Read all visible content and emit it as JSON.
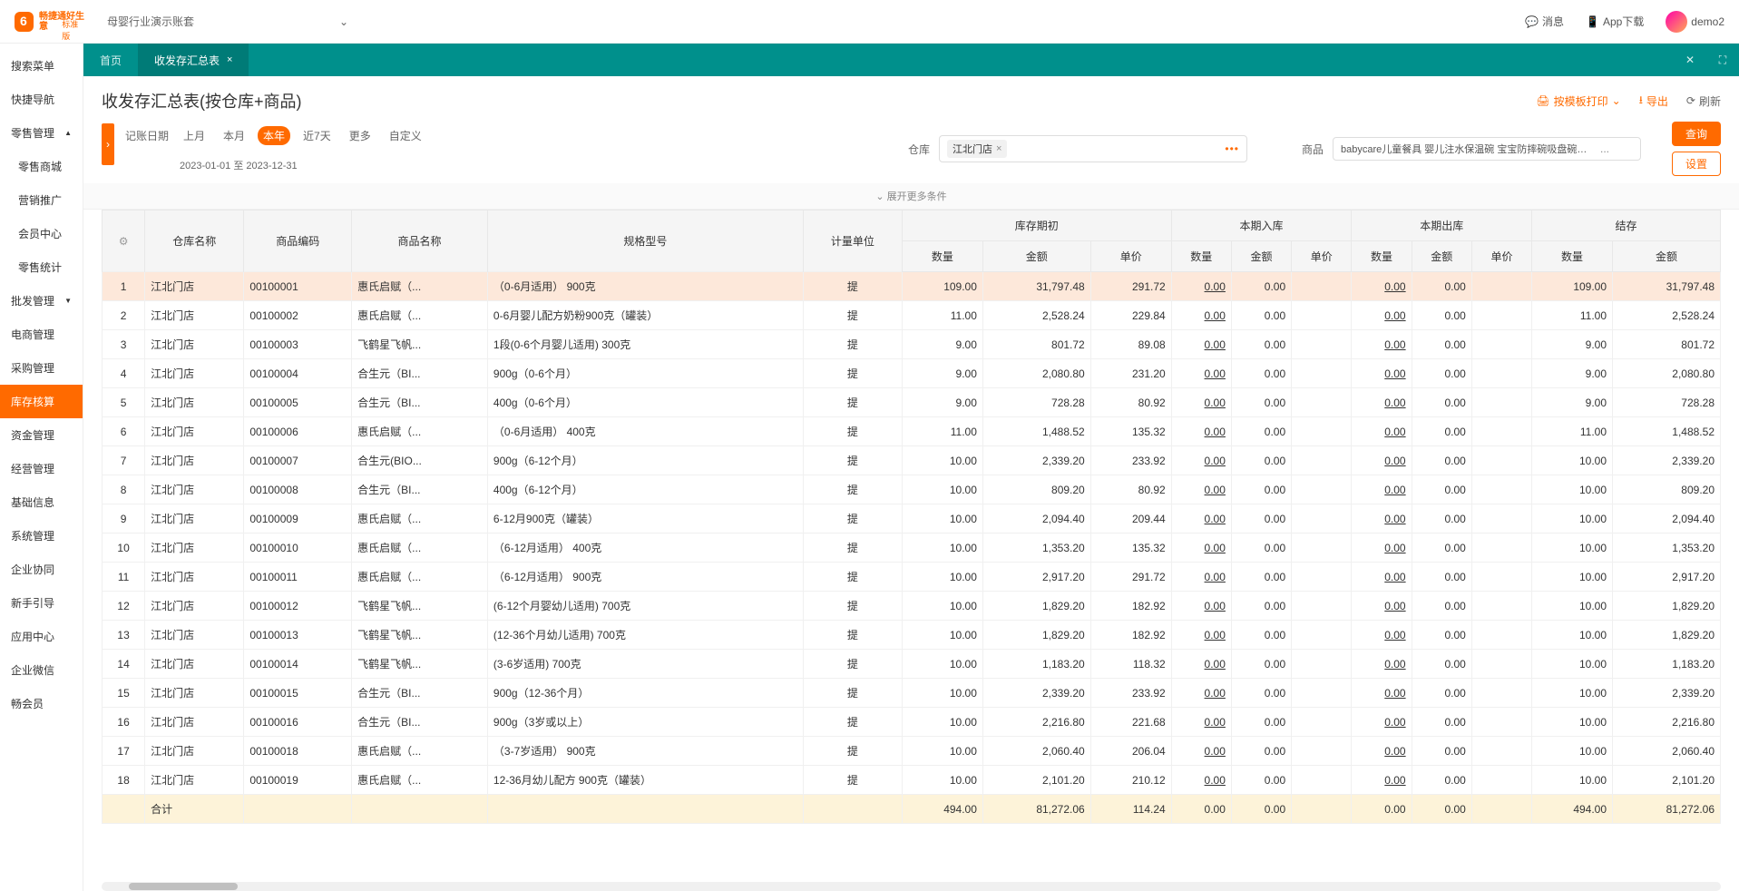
{
  "header": {
    "brand": "畅捷通好生意",
    "edition": "标准版",
    "account": "母婴行业演示账套",
    "msg": "消息",
    "appdl": "App下载",
    "user": "demo2"
  },
  "nav": {
    "items": [
      {
        "label": "搜索菜单",
        "k": "search"
      },
      {
        "label": "快捷导航",
        "k": "quick"
      },
      {
        "label": "零售管理",
        "k": "retail",
        "caret": "▲"
      },
      {
        "label": "零售商城",
        "k": "mall",
        "indent": true
      },
      {
        "label": "营销推广",
        "k": "mkt",
        "indent": true
      },
      {
        "label": "会员中心",
        "k": "member",
        "indent": true
      },
      {
        "label": "零售统计",
        "k": "rstat",
        "indent": true
      },
      {
        "label": "批发管理",
        "k": "whole",
        "caret": "▼"
      },
      {
        "label": "电商管理",
        "k": "ecom"
      },
      {
        "label": "采购管理",
        "k": "purchase"
      },
      {
        "label": "库存核算",
        "k": "inv",
        "active": true
      },
      {
        "label": "资金管理",
        "k": "fund"
      },
      {
        "label": "经营管理",
        "k": "biz"
      },
      {
        "label": "基础信息",
        "k": "base"
      },
      {
        "label": "系统管理",
        "k": "sys"
      },
      {
        "label": "企业协同",
        "k": "coop"
      },
      {
        "label": "新手引导",
        "k": "guide"
      },
      {
        "label": "应用中心",
        "k": "appc"
      },
      {
        "label": "企业微信",
        "k": "wecom"
      },
      {
        "label": "畅会员",
        "k": "vip"
      }
    ]
  },
  "tabs": {
    "home": "首页",
    "current": "收发存汇总表",
    "close": "×"
  },
  "page": {
    "title": "收发存汇总表(按仓库+商品)",
    "print": "按模板打印",
    "export": "导出",
    "refresh": "刷新"
  },
  "filter": {
    "dateLabel": "记账日期",
    "opts": {
      "last": "上月",
      "this": "本月",
      "year": "本年",
      "d7": "近7天",
      "more": "更多",
      "custom": "自定义"
    },
    "range": "2023-01-01 至 2023-12-31",
    "whLabel": "仓库",
    "whTag": "江北门店",
    "prodLabel": "商品",
    "prodText": "babycare儿童餐具 婴儿注水保温碗 宝宝防摔碗吸盘碗辅食碗勺套装 雀湖绿 | ...",
    "btnQuery": "查询",
    "btnSetting": "设置",
    "expand": "展开更多条件"
  },
  "table": {
    "h": {
      "wh": "仓库名称",
      "code": "商品编码",
      "name": "商品名称",
      "spec": "规格型号",
      "unit": "计量单位",
      "g_open": "库存期初",
      "g_in": "本期入库",
      "g_out": "本期出库",
      "g_bal": "结存",
      "qty": "数量",
      "amt": "金额",
      "price": "单价"
    },
    "rows": [
      {
        "n": 1,
        "wh": "江北门店",
        "code": "00100001",
        "name": "惠氏启赋（...",
        "spec": "（0-6月适用） 900克",
        "unit": "提",
        "oq": "109.00",
        "oa": "31,797.48",
        "op": "291.72",
        "iq": "0.00",
        "ia": "0.00",
        "ip": "",
        "xq": "0.00",
        "xa": "0.00",
        "xp": "",
        "bq": "109.00",
        "ba": "31,797.48"
      },
      {
        "n": 2,
        "wh": "江北门店",
        "code": "00100002",
        "name": "惠氏启赋（...",
        "spec": "0-6月婴儿配方奶粉900克（罐装）",
        "unit": "提",
        "oq": "11.00",
        "oa": "2,528.24",
        "op": "229.84",
        "iq": "0.00",
        "ia": "0.00",
        "ip": "",
        "xq": "0.00",
        "xa": "0.00",
        "xp": "",
        "bq": "11.00",
        "ba": "2,528.24"
      },
      {
        "n": 3,
        "wh": "江北门店",
        "code": "00100003",
        "name": "飞鹤星飞帆...",
        "spec": "1段(0-6个月婴儿适用) 300克",
        "unit": "提",
        "oq": "9.00",
        "oa": "801.72",
        "op": "89.08",
        "iq": "0.00",
        "ia": "0.00",
        "ip": "",
        "xq": "0.00",
        "xa": "0.00",
        "xp": "",
        "bq": "9.00",
        "ba": "801.72"
      },
      {
        "n": 4,
        "wh": "江北门店",
        "code": "00100004",
        "name": "合生元（BI...",
        "spec": "900g（0-6个月）",
        "unit": "提",
        "oq": "9.00",
        "oa": "2,080.80",
        "op": "231.20",
        "iq": "0.00",
        "ia": "0.00",
        "ip": "",
        "xq": "0.00",
        "xa": "0.00",
        "xp": "",
        "bq": "9.00",
        "ba": "2,080.80"
      },
      {
        "n": 5,
        "wh": "江北门店",
        "code": "00100005",
        "name": "合生元（BI...",
        "spec": "400g（0-6个月）",
        "unit": "提",
        "oq": "9.00",
        "oa": "728.28",
        "op": "80.92",
        "iq": "0.00",
        "ia": "0.00",
        "ip": "",
        "xq": "0.00",
        "xa": "0.00",
        "xp": "",
        "bq": "9.00",
        "ba": "728.28"
      },
      {
        "n": 6,
        "wh": "江北门店",
        "code": "00100006",
        "name": "惠氏启赋（...",
        "spec": "（0-6月适用） 400克",
        "unit": "提",
        "oq": "11.00",
        "oa": "1,488.52",
        "op": "135.32",
        "iq": "0.00",
        "ia": "0.00",
        "ip": "",
        "xq": "0.00",
        "xa": "0.00",
        "xp": "",
        "bq": "11.00",
        "ba": "1,488.52"
      },
      {
        "n": 7,
        "wh": "江北门店",
        "code": "00100007",
        "name": "合生元(BIO...",
        "spec": "900g（6-12个月）",
        "unit": "提",
        "oq": "10.00",
        "oa": "2,339.20",
        "op": "233.92",
        "iq": "0.00",
        "ia": "0.00",
        "ip": "",
        "xq": "0.00",
        "xa": "0.00",
        "xp": "",
        "bq": "10.00",
        "ba": "2,339.20"
      },
      {
        "n": 8,
        "wh": "江北门店",
        "code": "00100008",
        "name": "合生元（BI...",
        "spec": "400g（6-12个月）",
        "unit": "提",
        "oq": "10.00",
        "oa": "809.20",
        "op": "80.92",
        "iq": "0.00",
        "ia": "0.00",
        "ip": "",
        "xq": "0.00",
        "xa": "0.00",
        "xp": "",
        "bq": "10.00",
        "ba": "809.20"
      },
      {
        "n": 9,
        "wh": "江北门店",
        "code": "00100009",
        "name": "惠氏启赋（...",
        "spec": "6-12月900克（罐装）",
        "unit": "提",
        "oq": "10.00",
        "oa": "2,094.40",
        "op": "209.44",
        "iq": "0.00",
        "ia": "0.00",
        "ip": "",
        "xq": "0.00",
        "xa": "0.00",
        "xp": "",
        "bq": "10.00",
        "ba": "2,094.40"
      },
      {
        "n": 10,
        "wh": "江北门店",
        "code": "00100010",
        "name": "惠氏启赋（...",
        "spec": "（6-12月适用） 400克",
        "unit": "提",
        "oq": "10.00",
        "oa": "1,353.20",
        "op": "135.32",
        "iq": "0.00",
        "ia": "0.00",
        "ip": "",
        "xq": "0.00",
        "xa": "0.00",
        "xp": "",
        "bq": "10.00",
        "ba": "1,353.20"
      },
      {
        "n": 11,
        "wh": "江北门店",
        "code": "00100011",
        "name": "惠氏启赋（...",
        "spec": "（6-12月适用） 900克",
        "unit": "提",
        "oq": "10.00",
        "oa": "2,917.20",
        "op": "291.72",
        "iq": "0.00",
        "ia": "0.00",
        "ip": "",
        "xq": "0.00",
        "xa": "0.00",
        "xp": "",
        "bq": "10.00",
        "ba": "2,917.20"
      },
      {
        "n": 12,
        "wh": "江北门店",
        "code": "00100012",
        "name": "飞鹤星飞帆...",
        "spec": "(6-12个月婴幼儿适用) 700克",
        "unit": "提",
        "oq": "10.00",
        "oa": "1,829.20",
        "op": "182.92",
        "iq": "0.00",
        "ia": "0.00",
        "ip": "",
        "xq": "0.00",
        "xa": "0.00",
        "xp": "",
        "bq": "10.00",
        "ba": "1,829.20"
      },
      {
        "n": 13,
        "wh": "江北门店",
        "code": "00100013",
        "name": "飞鹤星飞帆...",
        "spec": "(12-36个月幼儿适用) 700克",
        "unit": "提",
        "oq": "10.00",
        "oa": "1,829.20",
        "op": "182.92",
        "iq": "0.00",
        "ia": "0.00",
        "ip": "",
        "xq": "0.00",
        "xa": "0.00",
        "xp": "",
        "bq": "10.00",
        "ba": "1,829.20"
      },
      {
        "n": 14,
        "wh": "江北门店",
        "code": "00100014",
        "name": "飞鹤星飞帆...",
        "spec": "(3-6岁适用) 700克",
        "unit": "提",
        "oq": "10.00",
        "oa": "1,183.20",
        "op": "118.32",
        "iq": "0.00",
        "ia": "0.00",
        "ip": "",
        "xq": "0.00",
        "xa": "0.00",
        "xp": "",
        "bq": "10.00",
        "ba": "1,183.20"
      },
      {
        "n": 15,
        "wh": "江北门店",
        "code": "00100015",
        "name": "合生元（BI...",
        "spec": "900g（12-36个月）",
        "unit": "提",
        "oq": "10.00",
        "oa": "2,339.20",
        "op": "233.92",
        "iq": "0.00",
        "ia": "0.00",
        "ip": "",
        "xq": "0.00",
        "xa": "0.00",
        "xp": "",
        "bq": "10.00",
        "ba": "2,339.20"
      },
      {
        "n": 16,
        "wh": "江北门店",
        "code": "00100016",
        "name": "合生元（BI...",
        "spec": "900g（3岁或以上）",
        "unit": "提",
        "oq": "10.00",
        "oa": "2,216.80",
        "op": "221.68",
        "iq": "0.00",
        "ia": "0.00",
        "ip": "",
        "xq": "0.00",
        "xa": "0.00",
        "xp": "",
        "bq": "10.00",
        "ba": "2,216.80"
      },
      {
        "n": 17,
        "wh": "江北门店",
        "code": "00100018",
        "name": "惠氏启赋（...",
        "spec": "（3-7岁适用） 900克",
        "unit": "提",
        "oq": "10.00",
        "oa": "2,060.40",
        "op": "206.04",
        "iq": "0.00",
        "ia": "0.00",
        "ip": "",
        "xq": "0.00",
        "xa": "0.00",
        "xp": "",
        "bq": "10.00",
        "ba": "2,060.40"
      },
      {
        "n": 18,
        "wh": "江北门店",
        "code": "00100019",
        "name": "惠氏启赋（...",
        "spec": "12-36月幼儿配方 900克（罐装）",
        "unit": "提",
        "oq": "10.00",
        "oa": "2,101.20",
        "op": "210.12",
        "iq": "0.00",
        "ia": "0.00",
        "ip": "",
        "xq": "0.00",
        "xa": "0.00",
        "xp": "",
        "bq": "10.00",
        "ba": "2,101.20"
      }
    ],
    "total": {
      "label": "合计",
      "oq": "494.00",
      "oa": "81,272.06",
      "op": "114.24",
      "iq": "0.00",
      "ia": "0.00",
      "xq": "0.00",
      "xa": "0.00",
      "bq": "494.00",
      "ba": "81,272.06"
    }
  }
}
